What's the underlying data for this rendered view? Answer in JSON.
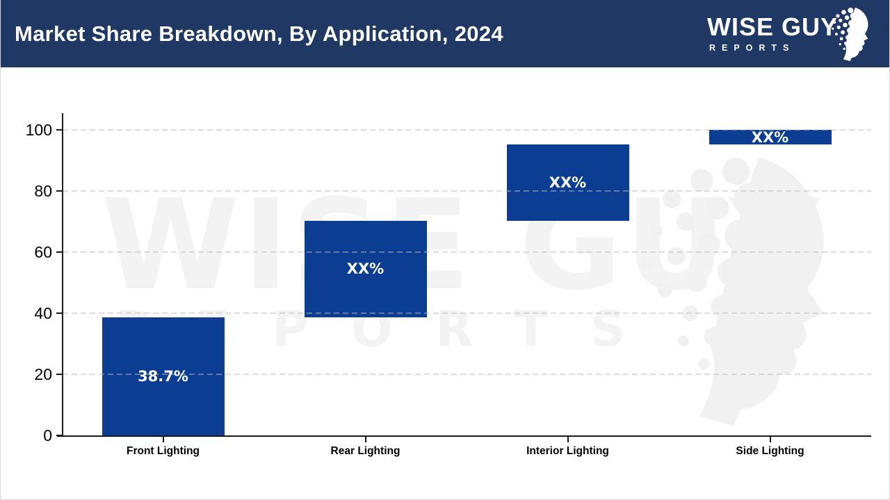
{
  "header": {
    "title": "Market Share Breakdown, By Application, 2024",
    "logo": {
      "primary": "WISE GUY",
      "secondary": "REPORTS",
      "face_icon": "dotted-face-profile-icon"
    }
  },
  "watermark": {
    "line1": "WISE GUY",
    "line2": "REPORTS",
    "face_icon": "dotted-face-profile-icon"
  },
  "chart_data": {
    "type": "bar",
    "subtype": "stacked-waterfall",
    "title": "Market Share Breakdown, By Application, 2024",
    "categories": [
      "Front Lighting",
      "Rear Lighting",
      "Interior Lighting",
      "Side Lighting"
    ],
    "segments": [
      {
        "category": "Front Lighting",
        "start": 0,
        "end": 38.7,
        "label": "38.7%"
      },
      {
        "category": "Rear Lighting",
        "start": 38.7,
        "end": 70.3,
        "label": "XX%"
      },
      {
        "category": "Interior Lighting",
        "start": 70.3,
        "end": 95.2,
        "label": "XX%"
      },
      {
        "category": "Side Lighting",
        "start": 95.2,
        "end": 100.0,
        "label": "XX%"
      }
    ],
    "xlabel": "",
    "ylabel": "",
    "ylim": [
      0,
      100
    ],
    "yticks": [
      0,
      20,
      40,
      60,
      80,
      100
    ],
    "grid": "horizontal-dashed",
    "legend_position": "none",
    "bar_color": "#0b3e92",
    "bar_label_color": "#ffffff"
  },
  "colors": {
    "header_bg": "#1f3864",
    "bar": "#0b3e92",
    "axis": "#1a1a1a",
    "gridline": "#e2e2e2",
    "watermark": "#f3f3f3",
    "frame_border": "#d9d9d9"
  }
}
